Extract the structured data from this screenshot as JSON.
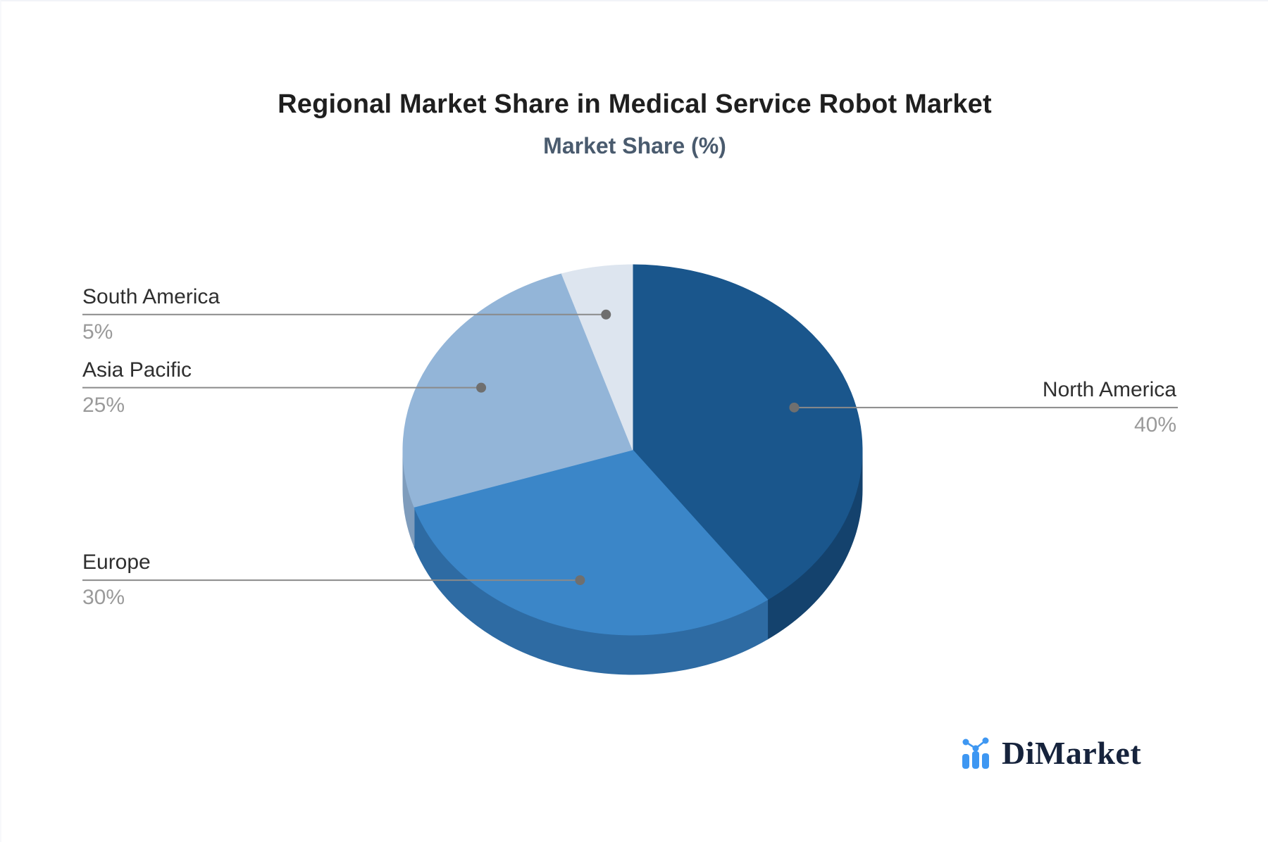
{
  "header": {
    "title": "Regional Market Share in Medical Service Robot Market",
    "subtitle": "Market Share (%)"
  },
  "chart_data": {
    "type": "pie",
    "title": "Regional Market Share in Medical Service Robot Market",
    "subtitle": "Market Share (%)",
    "unit": "%",
    "style": "3d-pie",
    "start_angle_deg": -90,
    "direction": "clockwise",
    "legend_position": "none",
    "slices": [
      {
        "label": "North America",
        "value": 40,
        "pct_text": "40%",
        "color": "#1A568C",
        "side_color": "#14426D",
        "label_side": "right"
      },
      {
        "label": "Europe",
        "value": 30,
        "pct_text": "30%",
        "color": "#3B86C8",
        "side_color": "#2E6BA3",
        "label_side": "left"
      },
      {
        "label": "Asia Pacific",
        "value": 25,
        "pct_text": "25%",
        "color": "#93B5D8",
        "side_color": "#7E9CBC",
        "label_side": "left"
      },
      {
        "label": "South America",
        "value": 5,
        "pct_text": "5%",
        "color": "#DDE5EF",
        "side_color": "#C9D6E5",
        "label_side": "left"
      }
    ]
  },
  "logo": {
    "text": "DiMarket",
    "icon": "bar-line-chart-icon",
    "icon_color": "#3E97F2",
    "text_color": "#16233C"
  },
  "colors": {
    "background": "#FFFFFF",
    "title_text": "#1F1F1F",
    "subtitle_text": "#4A5B6E",
    "label_text": "#2F2F2F",
    "pct_text": "#9A9A9A",
    "leader_line": "#8A8A8A",
    "leader_dot": "#6F6F6F"
  }
}
